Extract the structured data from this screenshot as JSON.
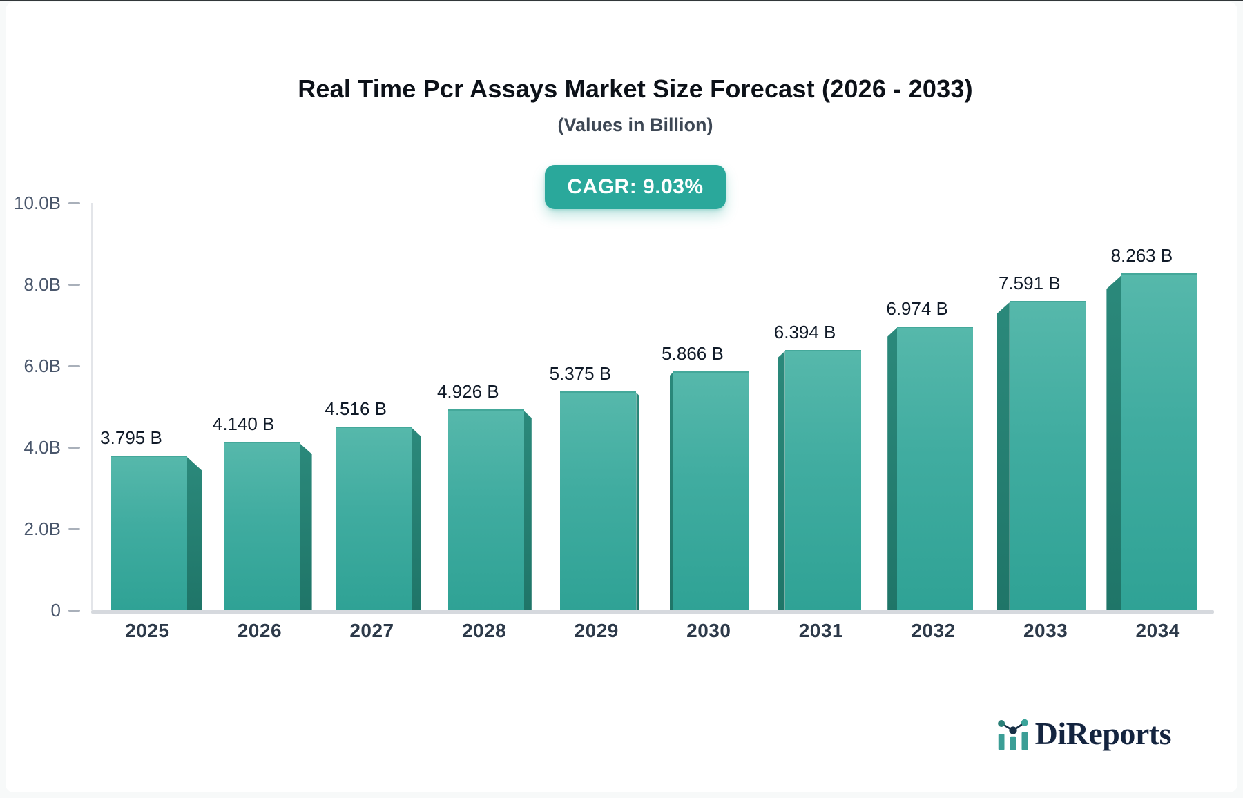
{
  "header": {
    "title": "Real Time Pcr Assays Market Size Forecast (2026 - 2033)",
    "subtitle": "(Values in Billion)",
    "cagr_badge": "CAGR: 9.03%"
  },
  "chart_data": {
    "type": "bar",
    "title": "Real Time Pcr Assays Market Size Forecast (2026 - 2033)",
    "subtitle": "(Values in Billion)",
    "cagr_percent": "9.03%",
    "categories": [
      "2025",
      "2026",
      "2027",
      "2028",
      "2029",
      "2030",
      "2031",
      "2032",
      "2033",
      "2034"
    ],
    "values": [
      3.795,
      4.14,
      4.516,
      4.926,
      5.375,
      5.866,
      6.394,
      6.974,
      7.591,
      8.263
    ],
    "bar_labels": [
      "3.795 B",
      "4.140 B",
      "4.516 B",
      "4.926 B",
      "5.375 B",
      "5.866 B",
      "6.394 B",
      "6.974 B",
      "7.591 B",
      "8.263 B"
    ],
    "y_ticks": [
      "10.0B",
      "8.0B",
      "6.0B",
      "4.0B",
      "2.0B",
      "0"
    ],
    "ylim": [
      0,
      10
    ],
    "xlabel": "",
    "ylabel": "",
    "grid": "off",
    "legend": "none",
    "style": "pseudo-3d bars, teal gradient"
  },
  "branding": {
    "logo_text": "DiReports",
    "logo_icon": "bar-chart-with-trend-dots-icon"
  },
  "colors": {
    "accent_teal": "#2aa89b",
    "bar_face_top": "#56b8ab",
    "bar_face_bottom": "#2fa295",
    "bar_side_dark": "#1f7568",
    "axis_line": "#e3e5e9",
    "baseline": "#d6d9de",
    "tick": "#a9b0ba",
    "title_text": "#0c1118",
    "subtitle_text": "#3d4754",
    "logo_navy": "#14243f",
    "logo_teal": "#3b9e96"
  }
}
